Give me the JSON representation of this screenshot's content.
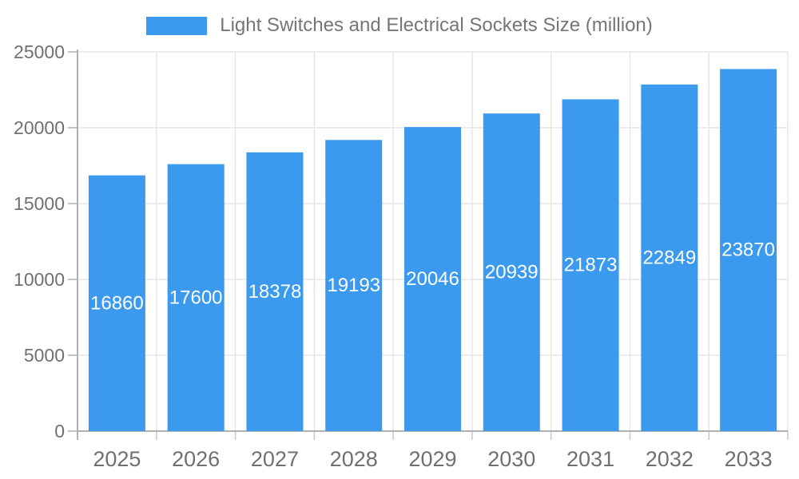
{
  "chart_data": {
    "type": "bar",
    "title": "Light Switches and Electrical Sockets Size (million)",
    "legend": [
      "Light Switches and Electrical Sockets Size (million)"
    ],
    "legend_position": "top-center",
    "categories": [
      "2025",
      "2026",
      "2027",
      "2028",
      "2029",
      "2030",
      "2031",
      "2032",
      "2033"
    ],
    "values": [
      16860,
      17600,
      18378,
      19193,
      20046,
      20939,
      21873,
      22849,
      23870
    ],
    "xlabel": "",
    "ylabel": "",
    "ylim": [
      0,
      25000
    ],
    "yticks": [
      0,
      5000,
      10000,
      15000,
      20000,
      25000
    ],
    "grid": true,
    "bar_color": "#3b99ee",
    "bar_label_color": "#ffffff",
    "grid_color": "#e6e6e6",
    "axis_color": "#b0b0b0",
    "tick_color": "#c9c9c9",
    "text_color": "#707070",
    "legend_text_color": "#757575"
  }
}
